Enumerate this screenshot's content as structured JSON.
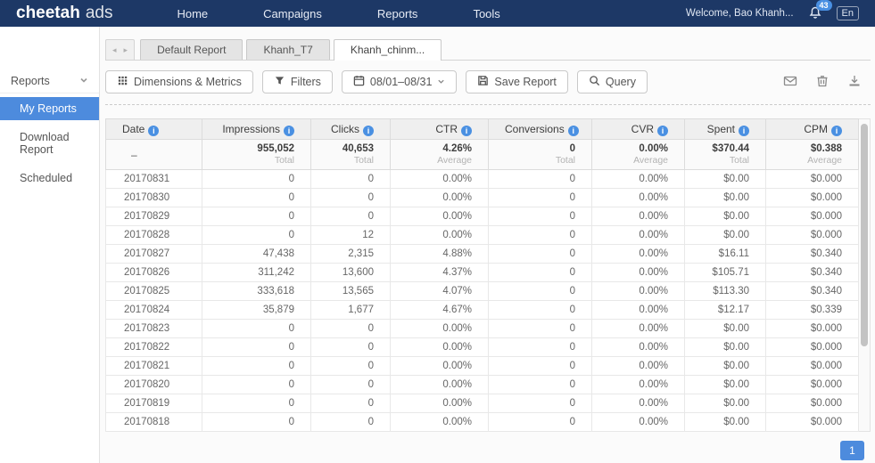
{
  "navbar": {
    "logo_bold": "cheetah",
    "logo_light": "ads",
    "items": [
      "Home",
      "Campaigns",
      "Reports",
      "Tools"
    ],
    "welcome": "Welcome,  Bao Khanh...",
    "notification_count": "43",
    "language": "En"
  },
  "tabs": {
    "items": [
      {
        "label": "Default Report",
        "active": false
      },
      {
        "label": "Khanh_T7",
        "active": false
      },
      {
        "label": "Khanh_chinm...",
        "active": true
      }
    ]
  },
  "sidebar": {
    "section_label": "Reports",
    "items": [
      {
        "label": "My Reports",
        "active": true
      },
      {
        "label": "Download Report",
        "active": false
      },
      {
        "label": "Scheduled",
        "active": false
      }
    ]
  },
  "toolbar": {
    "dimensions_metrics_label": "Dimensions & Metrics",
    "filters_label": "Filters",
    "date_range_label": "08/01–08/31",
    "save_report_label": "Save Report",
    "query_label": "Query"
  },
  "table": {
    "columns": [
      "Date",
      "Impressions",
      "Clicks",
      "CTR",
      "Conversions",
      "CVR",
      "Spent",
      "CPM"
    ],
    "summary": {
      "date": "–",
      "values": [
        "955,052",
        "40,653",
        "4.26%",
        "0",
        "0.00%",
        "$370.44",
        "$0.388"
      ],
      "labels": [
        "Total",
        "Total",
        "Average",
        "Total",
        "Average",
        "Total",
        "Average"
      ]
    },
    "rows": [
      [
        "20170831",
        "0",
        "0",
        "0.00%",
        "0",
        "0.00%",
        "$0.00",
        "$0.000"
      ],
      [
        "20170830",
        "0",
        "0",
        "0.00%",
        "0",
        "0.00%",
        "$0.00",
        "$0.000"
      ],
      [
        "20170829",
        "0",
        "0",
        "0.00%",
        "0",
        "0.00%",
        "$0.00",
        "$0.000"
      ],
      [
        "20170828",
        "0",
        "12",
        "0.00%",
        "0",
        "0.00%",
        "$0.00",
        "$0.000"
      ],
      [
        "20170827",
        "47,438",
        "2,315",
        "4.88%",
        "0",
        "0.00%",
        "$16.11",
        "$0.340"
      ],
      [
        "20170826",
        "311,242",
        "13,600",
        "4.37%",
        "0",
        "0.00%",
        "$105.71",
        "$0.340"
      ],
      [
        "20170825",
        "333,618",
        "13,565",
        "4.07%",
        "0",
        "0.00%",
        "$113.30",
        "$0.340"
      ],
      [
        "20170824",
        "35,879",
        "1,677",
        "4.67%",
        "0",
        "0.00%",
        "$12.17",
        "$0.339"
      ],
      [
        "20170823",
        "0",
        "0",
        "0.00%",
        "0",
        "0.00%",
        "$0.00",
        "$0.000"
      ],
      [
        "20170822",
        "0",
        "0",
        "0.00%",
        "0",
        "0.00%",
        "$0.00",
        "$0.000"
      ],
      [
        "20170821",
        "0",
        "0",
        "0.00%",
        "0",
        "0.00%",
        "$0.00",
        "$0.000"
      ],
      [
        "20170820",
        "0",
        "0",
        "0.00%",
        "0",
        "0.00%",
        "$0.00",
        "$0.000"
      ],
      [
        "20170819",
        "0",
        "0",
        "0.00%",
        "0",
        "0.00%",
        "$0.00",
        "$0.000"
      ],
      [
        "20170818",
        "0",
        "0",
        "0.00%",
        "0",
        "0.00%",
        "$0.00",
        "$0.000"
      ]
    ]
  },
  "pagination": {
    "current_page": "1"
  },
  "colors": {
    "navbar_bg": "#1d3866",
    "accent_blue": "#4d8bdd",
    "info_icon_blue": "#4a90e2",
    "header_bg": "#efefef",
    "summary_bg": "#fafafa"
  }
}
